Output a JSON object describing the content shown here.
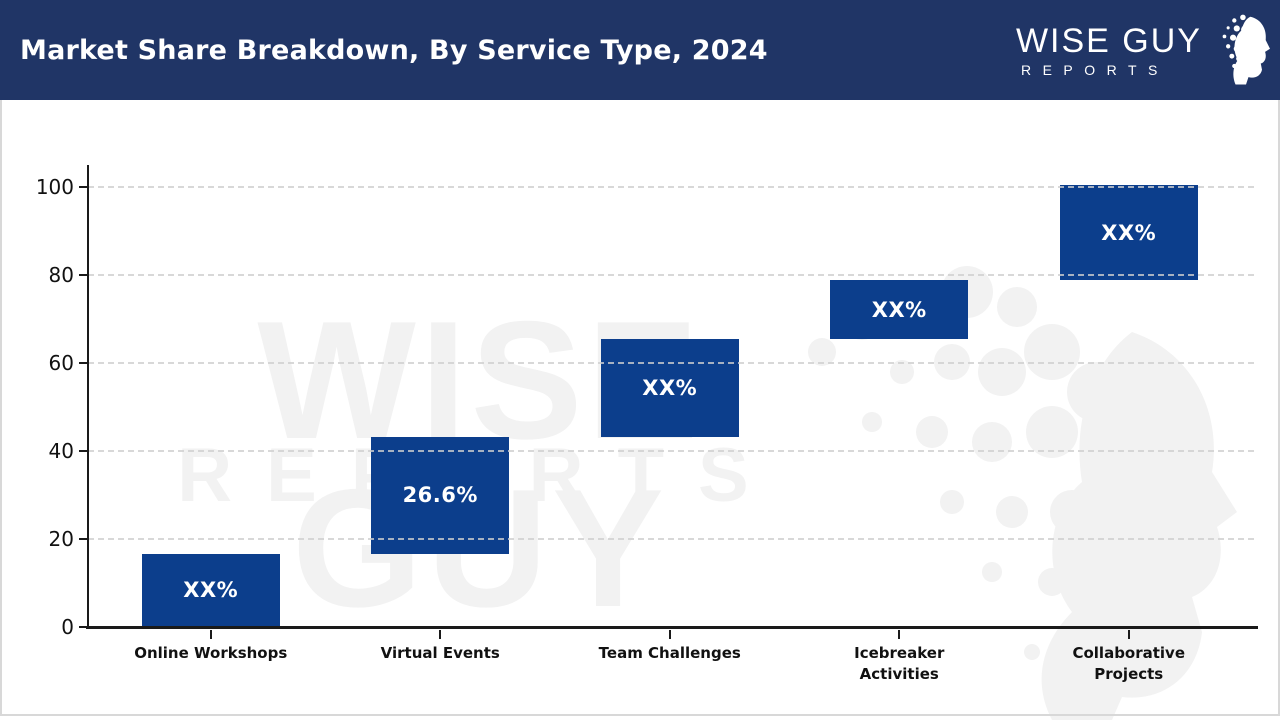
{
  "header": {
    "title": "Market Share Breakdown, By Service Type, 2024",
    "bg_color": "#203566",
    "text_color": "#ffffff",
    "logo": {
      "line1": "WISE GUY",
      "line2": "REPORTS",
      "icon": "dotted-head-profile-icon"
    }
  },
  "watermark": {
    "line1": "WISE GUY",
    "line2": "REPORTS",
    "color": "#f2f2f2",
    "graphic": "dotted-head-profile-watermark"
  },
  "chart_data": {
    "type": "bar",
    "subtype": "floating-waterfall",
    "title": "Market Share Breakdown, By Service Type, 2024",
    "xlabel": "",
    "ylabel": "",
    "categories": [
      "Online Workshops",
      "Virtual Events",
      "Team Challenges",
      "Icebreaker Activities",
      "Collaborative Projects"
    ],
    "segments": [
      {
        "category": "Online Workshops",
        "tick_label": "Online Workshops",
        "start": 0,
        "end": 16.6,
        "label": "XX%"
      },
      {
        "category": "Virtual Events",
        "tick_label": "Virtual Events",
        "start": 16.6,
        "end": 43.2,
        "label": "26.6%"
      },
      {
        "category": "Team Challenges",
        "tick_label": "Team Challenges",
        "start": 43.2,
        "end": 65.4,
        "label": "XX%"
      },
      {
        "category": "Icebreaker Activities",
        "tick_label": "Icebreaker\nActivities",
        "start": 65.4,
        "end": 78.8,
        "label": "XX%"
      },
      {
        "category": "Collaborative Projects",
        "tick_label": "Collaborative\nProjects",
        "start": 78.8,
        "end": 100.4,
        "label": "XX%"
      }
    ],
    "yticks": [
      0,
      20,
      40,
      60,
      80,
      100
    ],
    "ylim": [
      0,
      105
    ],
    "grid": true,
    "grid_style": "dashed",
    "gridline_color": "#cecece",
    "bar_color": "#0c3e8c",
    "bar_label_color": "#ffffff",
    "axis_color": "#1a1a1a",
    "legend": "none"
  }
}
